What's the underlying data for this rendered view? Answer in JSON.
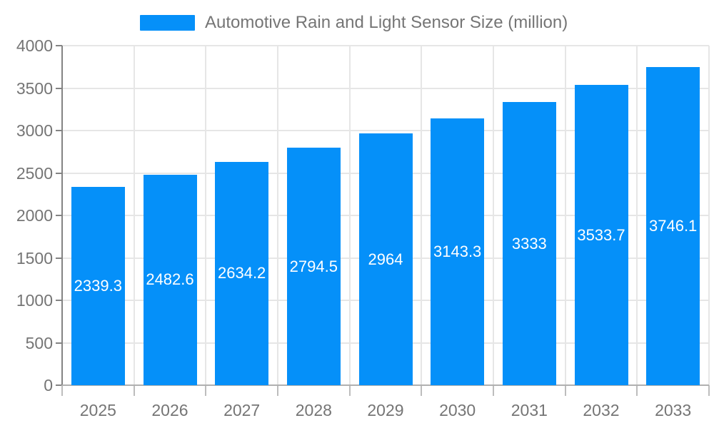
{
  "chart_data": {
    "type": "bar",
    "title": "Automotive Rain and Light Sensor Size (million)",
    "legend": {
      "position": "top",
      "label": "Automotive Rain and Light Sensor Size (million)"
    },
    "categories": [
      "2025",
      "2026",
      "2027",
      "2028",
      "2029",
      "2030",
      "2031",
      "2032",
      "2033"
    ],
    "values": [
      2339.3,
      2482.6,
      2634.2,
      2794.5,
      2964,
      3143.3,
      3333,
      3533.7,
      3746.1
    ],
    "value_labels": [
      "2339.3",
      "2482.6",
      "2634.2",
      "2794.5",
      "2964",
      "3143.3",
      "3333",
      "3533.7",
      "3746.1"
    ],
    "xlabel": "",
    "ylabel": "",
    "ylim": [
      0,
      4000
    ],
    "ytick_step": 500,
    "ytick_labels": [
      "0",
      "500",
      "1000",
      "1500",
      "2000",
      "2500",
      "3000",
      "3500",
      "4000"
    ],
    "grid": true,
    "colors": {
      "bar": "#0590f9",
      "grid": "#e6e6e6",
      "y_axis": "#838383",
      "x_axis": "#b0b0b0",
      "tick_label": "#757575",
      "value_label": "#ffffff",
      "background": "#ffffff"
    }
  }
}
